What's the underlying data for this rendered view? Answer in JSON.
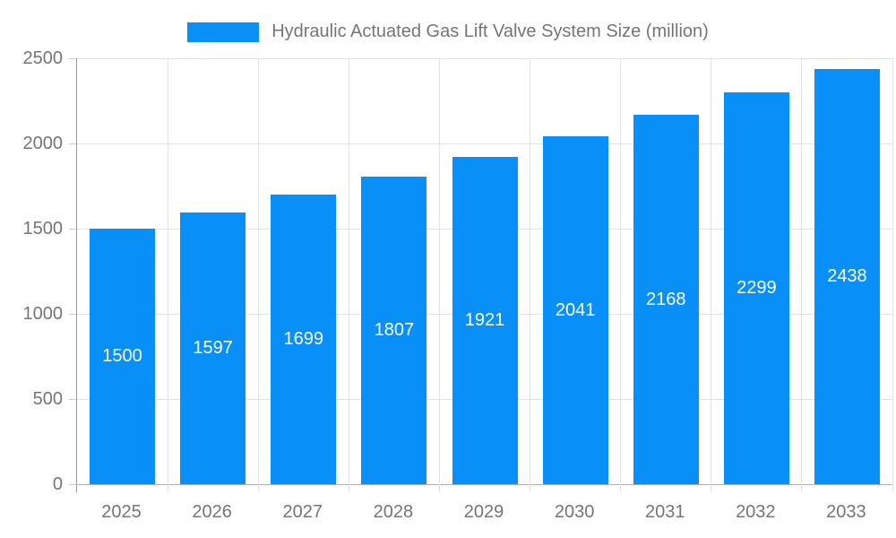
{
  "legend": {
    "label": "Hydraulic Actuated Gas Lift Valve System Size (million)"
  },
  "chart_data": {
    "type": "bar",
    "title": "Hydraulic Actuated Gas Lift Valve System Size (million)",
    "categories": [
      "2025",
      "2026",
      "2027",
      "2028",
      "2029",
      "2030",
      "2031",
      "2032",
      "2033"
    ],
    "values": [
      1500,
      1597,
      1699,
      1807,
      1921,
      2041,
      2168,
      2299,
      2438
    ],
    "xlabel": "",
    "ylabel": "",
    "ylim": [
      0,
      2500
    ],
    "yticks": [
      0,
      500,
      1000,
      1500,
      2000,
      2500
    ],
    "grid": true,
    "legend_position": "top",
    "bar_color": "#0990f8",
    "bar_label_color": "#ffffff",
    "axis_text_color": "#757575",
    "grid_color": "#e3e3e3",
    "axis_line_color": "#9a9a9a"
  }
}
